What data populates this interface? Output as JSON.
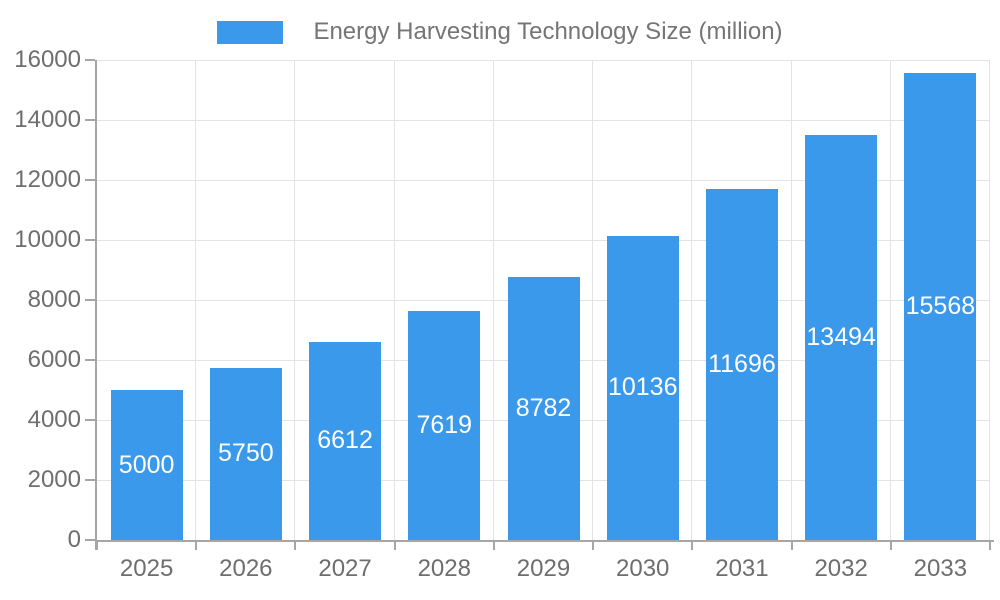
{
  "legend": {
    "label": "Energy Harvesting Technology Size (million)"
  },
  "chart_data": {
    "type": "bar",
    "series_name": "Energy Harvesting Technology Size (million)",
    "categories": [
      "2025",
      "2026",
      "2027",
      "2028",
      "2029",
      "2030",
      "2031",
      "2032",
      "2033"
    ],
    "values": [
      5000,
      5750,
      6612,
      7619,
      8782,
      10136,
      11696,
      13494,
      15568
    ],
    "xlabel": "",
    "ylabel": "",
    "ylim": [
      0,
      16000
    ],
    "yticks": [
      0,
      2000,
      4000,
      6000,
      8000,
      10000,
      12000,
      14000,
      16000
    ],
    "grid": true,
    "legend_position": "top",
    "value_label_position": "inside-center"
  },
  "style": {
    "bar_color": "#3B99EC",
    "value_label_color": "#FFFFFF",
    "axis_color": "#A6A6A6",
    "grid_color": "#E3E3E3",
    "tick_label_color": "#6E6E6E",
    "legend_text_color": "#757575",
    "background": "#FFFFFF"
  }
}
